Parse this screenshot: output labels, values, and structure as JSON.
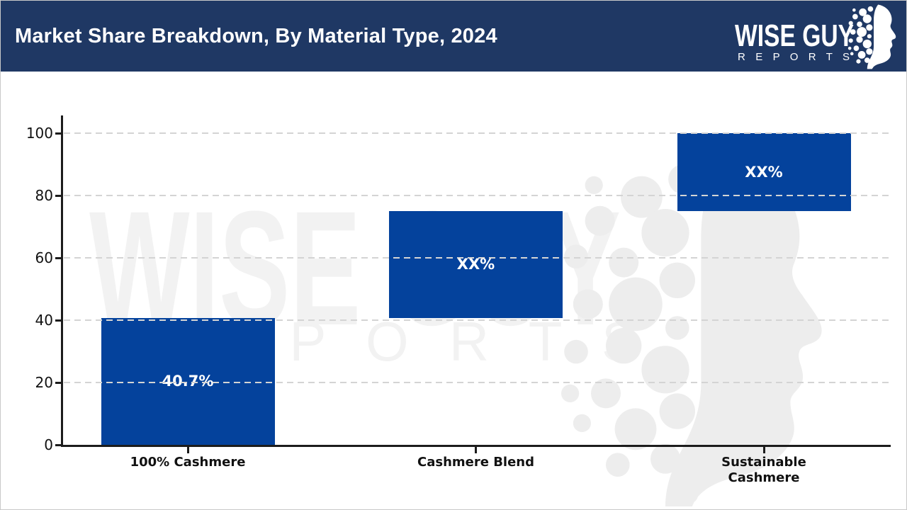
{
  "header": {
    "title": "Market Share Breakdown, By Material Type, 2024",
    "logo": {
      "line1": "WISE GUY",
      "line2": "R E P O R T S"
    }
  },
  "watermark": {
    "line1": "WISE GUY",
    "line2": "R E P O R T S"
  },
  "chart_data": {
    "type": "bar",
    "subtype": "stacked-waterfall-range-bars",
    "title": "Market Share Breakdown, By Material Type, 2024",
    "xlabel": "",
    "ylabel": "",
    "ylim": [
      0,
      100
    ],
    "yticks": [
      0,
      20,
      40,
      60,
      80,
      100
    ],
    "grid": "horizontal-dashed",
    "legend": "none",
    "categories": [
      "100% Cashmere",
      "Cashmere Blend",
      "Sustainable Cashmere"
    ],
    "segments": [
      {
        "category": "100% Cashmere",
        "from": 0,
        "to": 40.7,
        "label": "40.7%"
      },
      {
        "category": "Cashmere Blend",
        "from": 40.7,
        "to": 75,
        "label": "XX%"
      },
      {
        "category": "Sustainable Cashmere",
        "from": 75,
        "to": 100,
        "label": "XX%"
      }
    ],
    "bar_color": "#04429c",
    "bar_label_color": "#ffffff"
  },
  "colors": {
    "header_bg": "#1f3864",
    "title_text": "#ffffff",
    "bar": "#04429c",
    "axis": "#1c1c1c",
    "gridline": "#d4d4d4",
    "tick_label": "#111111",
    "watermark_text": "#f2f2f2",
    "watermark_dots": "#ededed",
    "frame_border": "#c9c9c9"
  }
}
